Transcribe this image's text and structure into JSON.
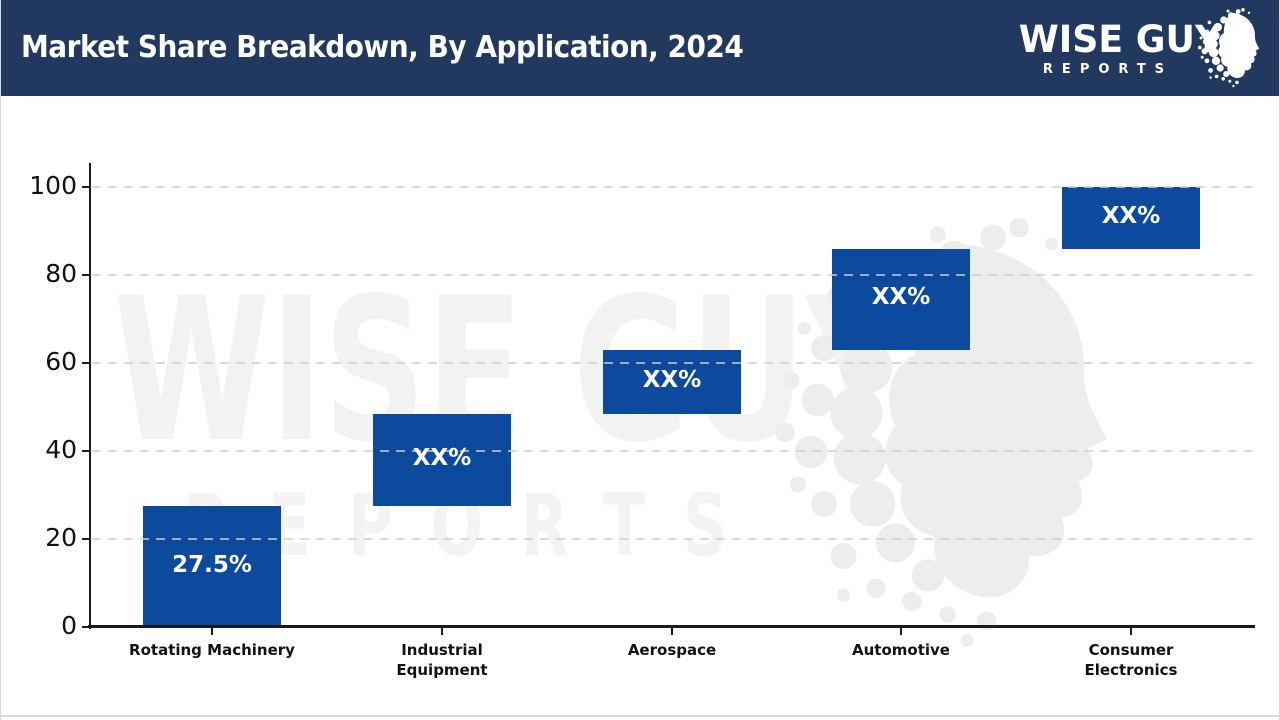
{
  "header": {
    "title": "Market Share Breakdown, By Application, 2024",
    "logo": {
      "title": "WISE GUY",
      "subtitle": "REPORTS"
    }
  },
  "watermark": {
    "line1": "WISE GUY",
    "line2": "REPORTS"
  },
  "colors": {
    "header_bg": "#21395f",
    "bar_fill": "#0c4a9e",
    "bar_label_text": "#ffffff",
    "axis": "#1a1a1a",
    "gridline": "#d6d6d6",
    "tick_label": "#111111",
    "watermark": "#f2f2f2"
  },
  "chart_data": {
    "type": "bar",
    "subtype": "waterfall-cumulative",
    "title": "Market Share Breakdown, By Application, 2024",
    "categories": [
      "Rotating Machinery",
      "Industrial\nEquipment",
      "Aerospace",
      "Automotive",
      "Consumer\nElectronics"
    ],
    "series": [
      {
        "name": "Market share (%)",
        "segments": [
          {
            "category": "Rotating Machinery",
            "start": 0,
            "end": 27.5,
            "label": "27.5%"
          },
          {
            "category": "Industrial Equipment",
            "start": 27.5,
            "end": 48.5,
            "label": "XX%"
          },
          {
            "category": "Aerospace",
            "start": 48.5,
            "end": 63,
            "label": "XX%"
          },
          {
            "category": "Automotive",
            "start": 63,
            "end": 86,
            "label": "XX%"
          },
          {
            "category": "Consumer Electronics",
            "start": 86,
            "end": 100,
            "label": "XX%"
          }
        ]
      }
    ],
    "ylim": [
      0,
      105
    ],
    "yticks": [
      0,
      20,
      40,
      60,
      80,
      100
    ],
    "xlabel": "",
    "ylabel": "",
    "grid": {
      "horizontal": true,
      "style": "dashed"
    },
    "legend": "none"
  }
}
